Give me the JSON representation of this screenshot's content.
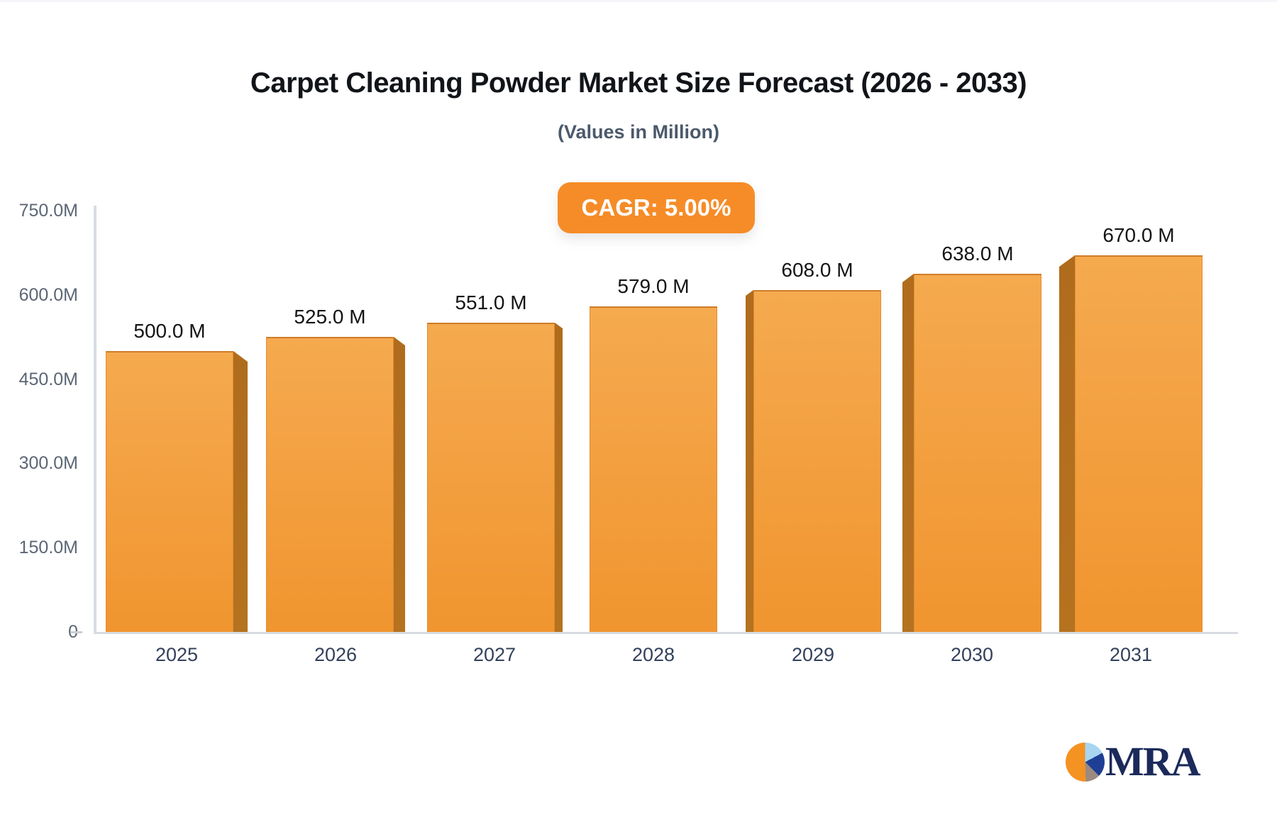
{
  "header": {
    "title": "Carpet Cleaning Powder Market Size Forecast (2026 - 2033)",
    "subtitle": "(Values in Million)",
    "cagr_label": "CAGR: 5.00%"
  },
  "chart_data": {
    "type": "bar",
    "title": "Carpet Cleaning Powder Market Size Forecast (2026 - 2033)",
    "subtitle": "(Values in Million)",
    "categories": [
      "2025",
      "2026",
      "2027",
      "2028",
      "2029",
      "2030",
      "2031"
    ],
    "values": [
      500,
      525,
      551,
      579,
      608,
      638,
      670
    ],
    "value_labels": [
      "500.0 M",
      "525.0 M",
      "551.0 M",
      "579.0 M",
      "608.0 M",
      "638.0 M",
      "670.0 M"
    ],
    "unit": "Million",
    "y_ticks": [
      {
        "label": "750.0M",
        "value": 750
      },
      {
        "label": "600.0M",
        "value": 600
      },
      {
        "label": "450.0M",
        "value": 450
      },
      {
        "label": "300.0M",
        "value": 300
      },
      {
        "label": "150.0M",
        "value": 150
      },
      {
        "label": "0",
        "value": 0
      }
    ],
    "ylim": [
      0,
      750
    ],
    "grid": false,
    "legend": false,
    "bar_style": "3d-perspective-center"
  },
  "colors": {
    "bar_orange": "#F39A38",
    "bar_side_dark": "#B26D1E",
    "badge_bg": "#F68C28",
    "badge_text": "#FFFFFF",
    "axis_gray": "#D8DCE2",
    "y_label": "#5C6675",
    "x_label": "#33415C",
    "value_label": "#141414",
    "logo_navy": "#1B2A5A",
    "logo_orange": "#F49222",
    "logo_lightblue": "#A9D5F0",
    "logo_blue": "#1F3F96",
    "logo_gray": "#9B8A80"
  },
  "logo": {
    "text": "MRA"
  }
}
